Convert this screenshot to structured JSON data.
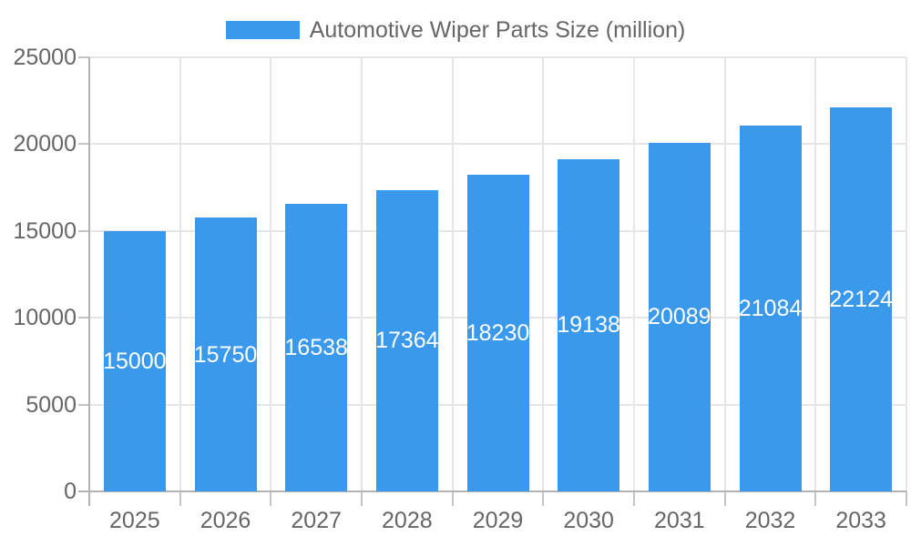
{
  "legend": {
    "label": "Automotive Wiper Parts Size (million)"
  },
  "chart_data": {
    "type": "bar",
    "title": "",
    "xlabel": "",
    "ylabel": "",
    "categories": [
      "2025",
      "2026",
      "2027",
      "2028",
      "2029",
      "2030",
      "2031",
      "2032",
      "2033"
    ],
    "series": [
      {
        "name": "Automotive Wiper Parts Size (million)",
        "values": [
          15000,
          15750,
          16538,
          17364,
          18230,
          19138,
          20089,
          21084,
          22124
        ]
      }
    ],
    "data_labels_shown": true,
    "ylim": [
      0,
      25000
    ],
    "y_ticks": [
      0,
      5000,
      10000,
      15000,
      20000,
      25000
    ],
    "grid": true,
    "legend_position": "top",
    "bar_color": "#3B99EC",
    "value_label_color": "#FFFFFF",
    "axis_text_color": "#666666",
    "grid_color": "#E6E6E6",
    "axis_line_color": "#B3B3B3",
    "tick_mark_color": "#C4C4C4",
    "background_color": "#FFFFFF"
  }
}
